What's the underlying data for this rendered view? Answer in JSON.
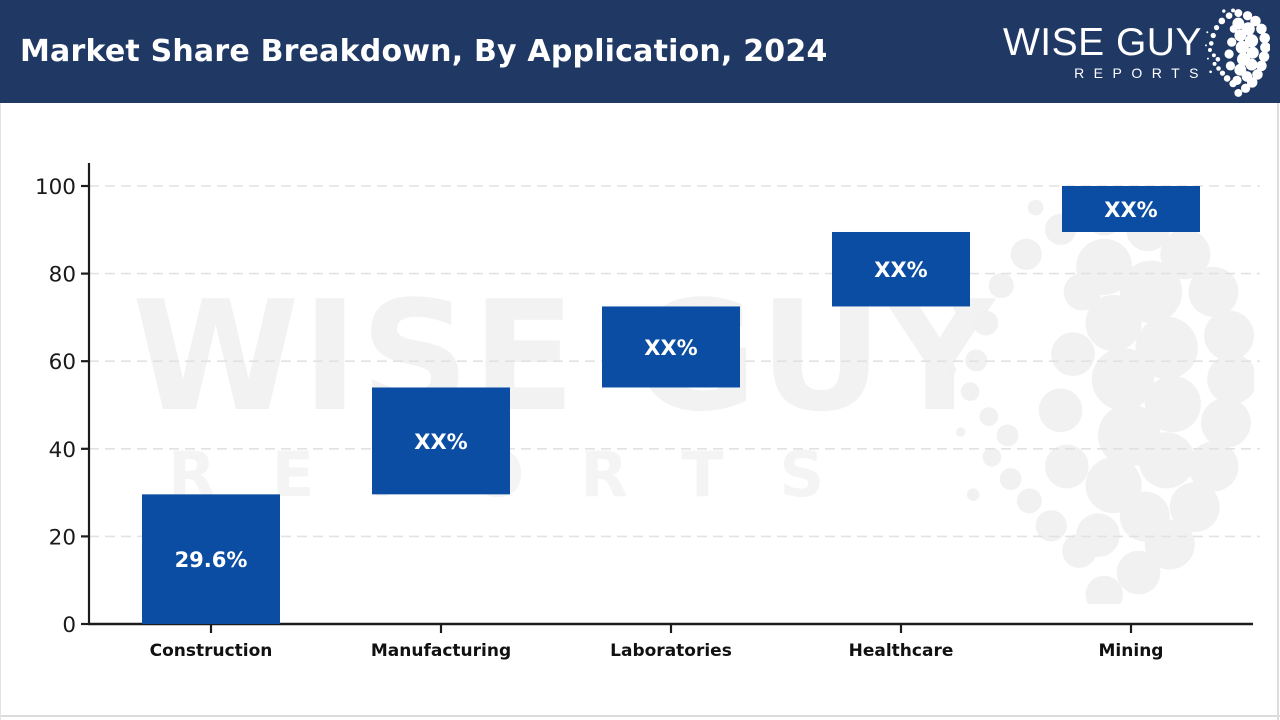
{
  "header": {
    "bg_color": "#203864",
    "logo": {
      "wordmark": "WISE GUY",
      "subtext": "REPORTS"
    }
  },
  "watermark": {
    "line1": "WISE GUY",
    "line2": "REPORTS"
  },
  "chart_data": {
    "type": "bar",
    "subtype": "waterfall",
    "title": "Market Share Breakdown, By Application, 2024",
    "categories": [
      "Construction",
      "Manufacturing",
      "Laboratories",
      "Healthcare",
      "Mining"
    ],
    "values": [
      29.6,
      24.4,
      18.5,
      17.0,
      10.5
    ],
    "bar_labels": [
      "29.6%",
      "XX%",
      "XX%",
      "XX%",
      "XX%"
    ],
    "xlabel": "",
    "ylabel": "",
    "ylim": [
      0,
      105
    ],
    "yticks": [
      0,
      20,
      40,
      60,
      80,
      100
    ],
    "grid": "horizontal-dashed",
    "legend": "none",
    "bar_color": "#0b4da2",
    "bar_label_color": "#ffffff",
    "axis_color": "#1c1c1c",
    "gridline_color": "#e2e2e2",
    "tick_label_color": "#1a1a1a"
  }
}
